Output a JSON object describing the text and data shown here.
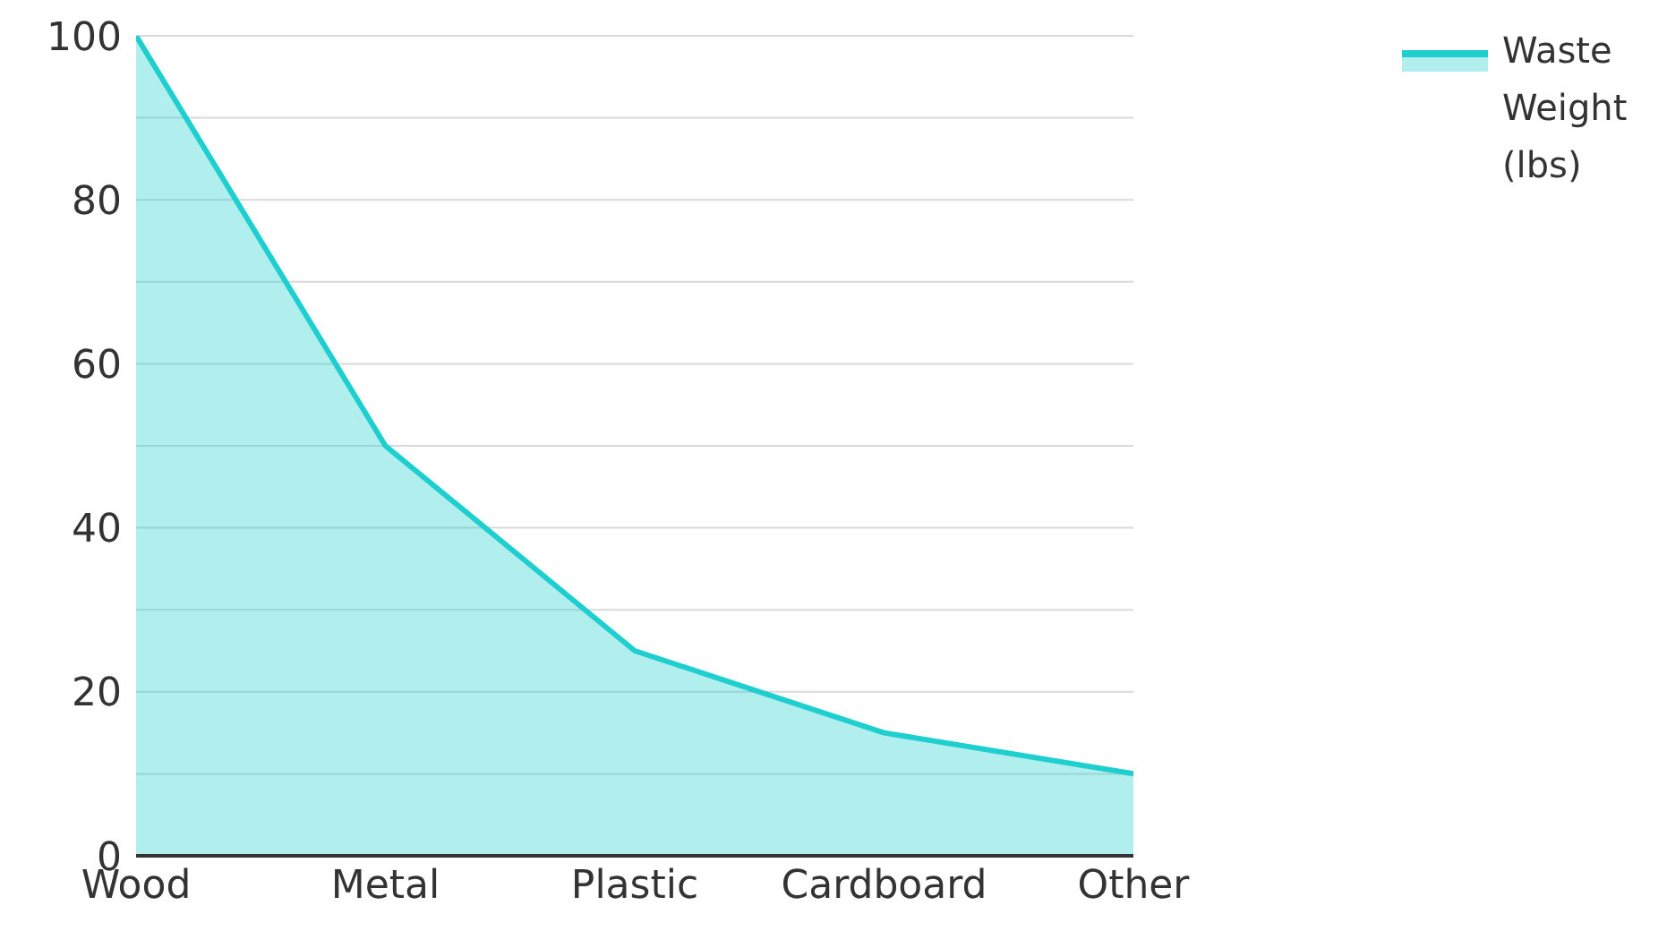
{
  "chart_data": {
    "type": "area",
    "categories": [
      "Wood",
      "Metal",
      "Plastic",
      "Cardboard",
      "Other"
    ],
    "series": [
      {
        "name": "Waste Weight (lbs)",
        "color": "#1fcfcf",
        "values": [
          100,
          50,
          25,
          15,
          10
        ]
      }
    ],
    "ylim": [
      0,
      100
    ],
    "yticks": [
      0,
      {
        "value": 10,
        "label": null
      },
      20,
      {
        "value": 30,
        "label": null
      },
      40,
      {
        "value": 50,
        "label": null
      },
      60,
      {
        "value": 70,
        "label": null
      },
      80,
      {
        "value": 90,
        "label": null
      },
      100
    ],
    "grid": "y",
    "legend": "top right"
  }
}
